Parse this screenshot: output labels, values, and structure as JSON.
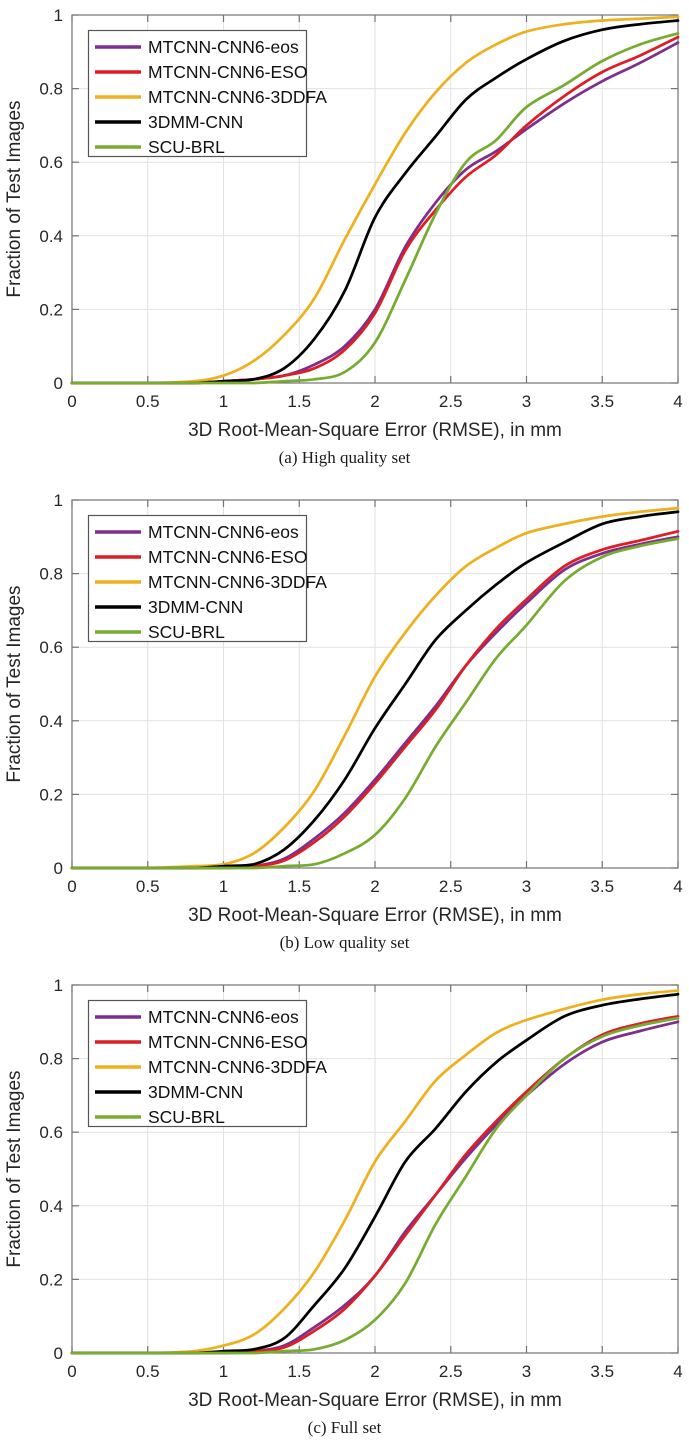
{
  "colors": {
    "grid": "#e2e2e2",
    "axis": "#737373",
    "legend_border": "#555555",
    "tick_label": "#262626",
    "background": "#ffffff"
  },
  "chart_data": [
    {
      "id": "a",
      "type": "line",
      "subtype": "empirical-cdf",
      "caption": "(a) High quality set",
      "xlabel": "3D Root-Mean-Square Error (RMSE), in mm",
      "ylabel": "Fraction of Test Images",
      "xlim": [
        0,
        4
      ],
      "ylim": [
        0,
        1
      ],
      "grid": true,
      "legend_position": "top-left",
      "xticks": [
        0,
        0.5,
        1,
        1.5,
        2,
        2.5,
        3,
        3.5,
        4
      ],
      "xtick_labels": [
        "0",
        "0.5",
        "1",
        "1.5",
        "2",
        "2.5",
        "3",
        "3.5",
        "4"
      ],
      "yticks": [
        0,
        0.2,
        0.4,
        0.6,
        0.8,
        1
      ],
      "ytick_labels": [
        "0",
        "0.2",
        "0.4",
        "0.6",
        "0.8",
        "1"
      ],
      "x": [
        0,
        0.5,
        0.8,
        1.0,
        1.2,
        1.4,
        1.6,
        1.8,
        2.0,
        2.2,
        2.4,
        2.6,
        2.8,
        3.0,
        3.25,
        3.5,
        3.75,
        4.0
      ],
      "series": [
        {
          "name": "MTCNN-CNN6-eos",
          "color": "#7E2F8E",
          "values": [
            0,
            0,
            0,
            0.005,
            0.01,
            0.02,
            0.05,
            0.1,
            0.2,
            0.37,
            0.49,
            0.58,
            0.63,
            0.69,
            0.76,
            0.82,
            0.87,
            0.925
          ]
        },
        {
          "name": "MTCNN-CNN6-ESO",
          "color": "#DC1F26",
          "values": [
            0,
            0,
            0,
            0.005,
            0.01,
            0.02,
            0.04,
            0.09,
            0.19,
            0.36,
            0.47,
            0.56,
            0.62,
            0.7,
            0.78,
            0.845,
            0.89,
            0.94
          ]
        },
        {
          "name": "MTCNN-CNN6-3DDFA",
          "color": "#EDB120",
          "values": [
            0,
            0,
            0.005,
            0.02,
            0.06,
            0.13,
            0.23,
            0.39,
            0.54,
            0.68,
            0.79,
            0.87,
            0.92,
            0.955,
            0.975,
            0.985,
            0.99,
            0.995
          ]
        },
        {
          "name": "3DMM-CNN",
          "color": "#000000",
          "values": [
            0,
            0,
            0,
            0.005,
            0.01,
            0.04,
            0.12,
            0.25,
            0.45,
            0.57,
            0.67,
            0.77,
            0.83,
            0.88,
            0.93,
            0.96,
            0.975,
            0.985
          ]
        },
        {
          "name": "SCU-BRL",
          "color": "#77AC30",
          "values": [
            0,
            0,
            0,
            0,
            0,
            0.005,
            0.01,
            0.03,
            0.11,
            0.28,
            0.46,
            0.6,
            0.66,
            0.75,
            0.81,
            0.875,
            0.92,
            0.95
          ]
        }
      ]
    },
    {
      "id": "b",
      "type": "line",
      "subtype": "empirical-cdf",
      "caption": "(b) Low quality set",
      "xlabel": "3D Root-Mean-Square Error (RMSE), in mm",
      "ylabel": "Fraction of Test Images",
      "xlim": [
        0,
        4
      ],
      "ylim": [
        0,
        1
      ],
      "grid": true,
      "legend_position": "top-left",
      "xticks": [
        0,
        0.5,
        1,
        1.5,
        2,
        2.5,
        3,
        3.5,
        4
      ],
      "xtick_labels": [
        "0",
        "0.5",
        "1",
        "1.5",
        "2",
        "2.5",
        "3",
        "3.5",
        "4"
      ],
      "yticks": [
        0,
        0.2,
        0.4,
        0.6,
        0.8,
        1
      ],
      "ytick_labels": [
        "0",
        "0.2",
        "0.4",
        "0.6",
        "0.8",
        "1"
      ],
      "x": [
        0,
        0.5,
        0.8,
        1.0,
        1.2,
        1.4,
        1.6,
        1.8,
        2.0,
        2.2,
        2.4,
        2.6,
        2.8,
        3.0,
        3.25,
        3.5,
        3.75,
        4.0
      ],
      "series": [
        {
          "name": "MTCNN-CNN6-eos",
          "color": "#7E2F8E",
          "values": [
            0,
            0,
            0,
            0,
            0.005,
            0.025,
            0.08,
            0.15,
            0.24,
            0.34,
            0.44,
            0.55,
            0.64,
            0.72,
            0.81,
            0.855,
            0.88,
            0.9
          ]
        },
        {
          "name": "MTCNN-CNN6-ESO",
          "color": "#DC1F26",
          "values": [
            0,
            0,
            0,
            0,
            0.005,
            0.02,
            0.07,
            0.14,
            0.23,
            0.33,
            0.43,
            0.55,
            0.65,
            0.73,
            0.82,
            0.865,
            0.89,
            0.915
          ]
        },
        {
          "name": "MTCNN-CNN6-3DDFA",
          "color": "#EDB120",
          "values": [
            0,
            0,
            0.005,
            0.01,
            0.04,
            0.11,
            0.21,
            0.36,
            0.52,
            0.64,
            0.74,
            0.82,
            0.87,
            0.91,
            0.935,
            0.955,
            0.968,
            0.978
          ]
        },
        {
          "name": "3DMM-CNN",
          "color": "#000000",
          "values": [
            0,
            0,
            0,
            0.005,
            0.01,
            0.05,
            0.13,
            0.24,
            0.38,
            0.5,
            0.62,
            0.7,
            0.77,
            0.83,
            0.885,
            0.935,
            0.955,
            0.968
          ]
        },
        {
          "name": "SCU-BRL",
          "color": "#77AC30",
          "values": [
            0,
            0,
            0,
            0,
            0,
            0.005,
            0.01,
            0.04,
            0.09,
            0.19,
            0.33,
            0.45,
            0.57,
            0.66,
            0.78,
            0.845,
            0.875,
            0.895
          ]
        }
      ]
    },
    {
      "id": "c",
      "type": "line",
      "subtype": "empirical-cdf",
      "caption": "(c) Full set",
      "xlabel": "3D Root-Mean-Square Error (RMSE), in mm",
      "ylabel": "Fraction of Test Images",
      "xlim": [
        0,
        4
      ],
      "ylim": [
        0,
        1
      ],
      "grid": true,
      "legend_position": "top-left",
      "xticks": [
        0,
        0.5,
        1,
        1.5,
        2,
        2.5,
        3,
        3.5,
        4
      ],
      "xtick_labels": [
        "0",
        "0.5",
        "1",
        "1.5",
        "2",
        "2.5",
        "3",
        "3.5",
        "4"
      ],
      "yticks": [
        0,
        0.2,
        0.4,
        0.6,
        0.8,
        1
      ],
      "ytick_labels": [
        "0",
        "0.2",
        "0.4",
        "0.6",
        "0.8",
        "1"
      ],
      "x": [
        0,
        0.5,
        0.8,
        1.0,
        1.2,
        1.4,
        1.6,
        1.8,
        2.0,
        2.2,
        2.4,
        2.6,
        2.8,
        3.0,
        3.25,
        3.5,
        3.75,
        4.0
      ],
      "series": [
        {
          "name": "MTCNN-CNN6-eos",
          "color": "#7E2F8E",
          "values": [
            0,
            0,
            0,
            0,
            0.005,
            0.02,
            0.07,
            0.13,
            0.21,
            0.33,
            0.43,
            0.53,
            0.62,
            0.7,
            0.785,
            0.845,
            0.875,
            0.9
          ]
        },
        {
          "name": "MTCNN-CNN6-ESO",
          "color": "#DC1F26",
          "values": [
            0,
            0,
            0,
            0,
            0.005,
            0.015,
            0.06,
            0.12,
            0.21,
            0.32,
            0.43,
            0.54,
            0.63,
            0.71,
            0.8,
            0.865,
            0.895,
            0.915
          ]
        },
        {
          "name": "MTCNN-CNN6-3DDFA",
          "color": "#EDB120",
          "values": [
            0,
            0,
            0.005,
            0.02,
            0.05,
            0.12,
            0.22,
            0.36,
            0.52,
            0.63,
            0.74,
            0.81,
            0.87,
            0.905,
            0.935,
            0.96,
            0.975,
            0.985
          ]
        },
        {
          "name": "3DMM-CNN",
          "color": "#000000",
          "values": [
            0,
            0,
            0,
            0.005,
            0.01,
            0.04,
            0.13,
            0.23,
            0.37,
            0.52,
            0.61,
            0.71,
            0.79,
            0.85,
            0.915,
            0.945,
            0.962,
            0.975
          ]
        },
        {
          "name": "SCU-BRL",
          "color": "#77AC30",
          "values": [
            0,
            0,
            0,
            0,
            0,
            0.005,
            0.01,
            0.035,
            0.09,
            0.19,
            0.35,
            0.48,
            0.61,
            0.7,
            0.8,
            0.86,
            0.89,
            0.91
          ]
        }
      ]
    }
  ]
}
